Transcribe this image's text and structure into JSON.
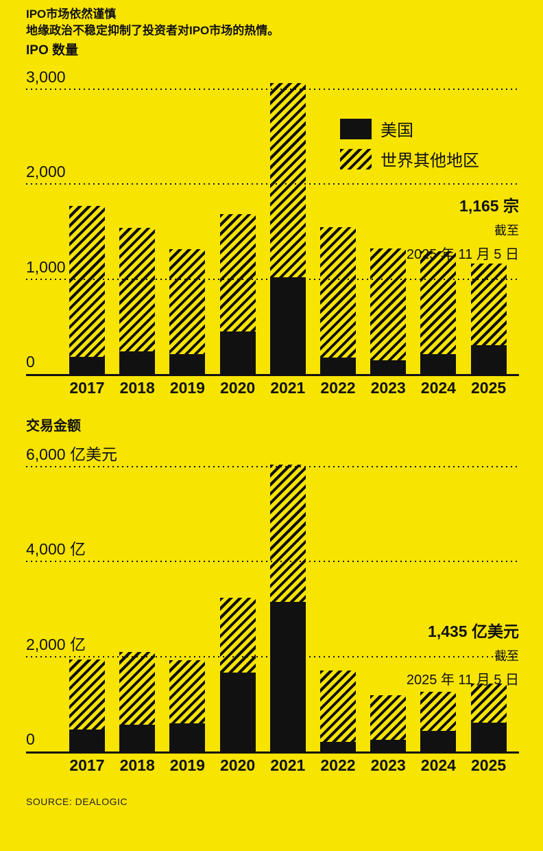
{
  "header": {
    "title": "IPO市场依然谨慎",
    "subtitle": "地缘政治不稳定抑制了投资者对IPO市场的热情。"
  },
  "legend": [
    {
      "label": "美国",
      "style": "solid-black"
    },
    {
      "label": "世界其他地区",
      "style": "diagonal-hatch"
    }
  ],
  "source": "SOURCE: DEALOGIC",
  "colors": {
    "background": "#F7E400",
    "ink": "#111111"
  },
  "chart_data": [
    {
      "type": "bar",
      "stacked": true,
      "title": "IPO 数量",
      "categories": [
        "2017",
        "2018",
        "2019",
        "2020",
        "2021",
        "2022",
        "2023",
        "2024",
        "2025"
      ],
      "series": [
        {
          "name": "美国",
          "values": [
            180,
            235,
            210,
            450,
            1020,
            170,
            145,
            210,
            300
          ]
        },
        {
          "name": "世界其他地区",
          "values": [
            1590,
            1300,
            1105,
            1230,
            2040,
            1375,
            1175,
            1085,
            865
          ]
        }
      ],
      "totals": [
        1770,
        1535,
        1315,
        1680,
        3060,
        1545,
        1320,
        1295,
        1165
      ],
      "yticks": [
        {
          "value": 3000,
          "label": "3,000"
        },
        {
          "value": 2000,
          "label": "2,000"
        },
        {
          "value": 1000,
          "label": "1,000"
        },
        {
          "value": 0,
          "label": "0"
        }
      ],
      "ylim": [
        0,
        3100
      ],
      "grid": "dotted-horizontal",
      "legend_position": "top-right-inside",
      "annotation": {
        "headline": "1,165 宗",
        "as_of": "截至",
        "date": "2025 年 11 月 5 日"
      }
    },
    {
      "type": "bar",
      "stacked": true,
      "title": "交易金额",
      "categories": [
        "2017",
        "2018",
        "2019",
        "2020",
        "2021",
        "2022",
        "2023",
        "2024",
        "2025"
      ],
      "series": [
        {
          "name": "美国",
          "values": [
            460,
            570,
            585,
            1660,
            3150,
            200,
            250,
            430,
            600
          ]
        },
        {
          "name": "世界其他地区",
          "values": [
            1480,
            1520,
            1335,
            1570,
            2890,
            1500,
            935,
            825,
            835
          ]
        }
      ],
      "totals": [
        1940,
        2090,
        1920,
        3230,
        6040,
        1700,
        1185,
        1255,
        1435
      ],
      "yticks": [
        {
          "value": 6000,
          "label": "6,000 亿美元"
        },
        {
          "value": 4000,
          "label": "4,000 亿"
        },
        {
          "value": 2000,
          "label": "2,000 亿"
        },
        {
          "value": 0,
          "label": "0"
        }
      ],
      "ylim": [
        0,
        6100
      ],
      "grid": "dotted-horizontal",
      "annotation": {
        "headline": "1,435 亿美元",
        "as_of": "截至",
        "date": "2025 年 11 月 5 日"
      }
    }
  ]
}
